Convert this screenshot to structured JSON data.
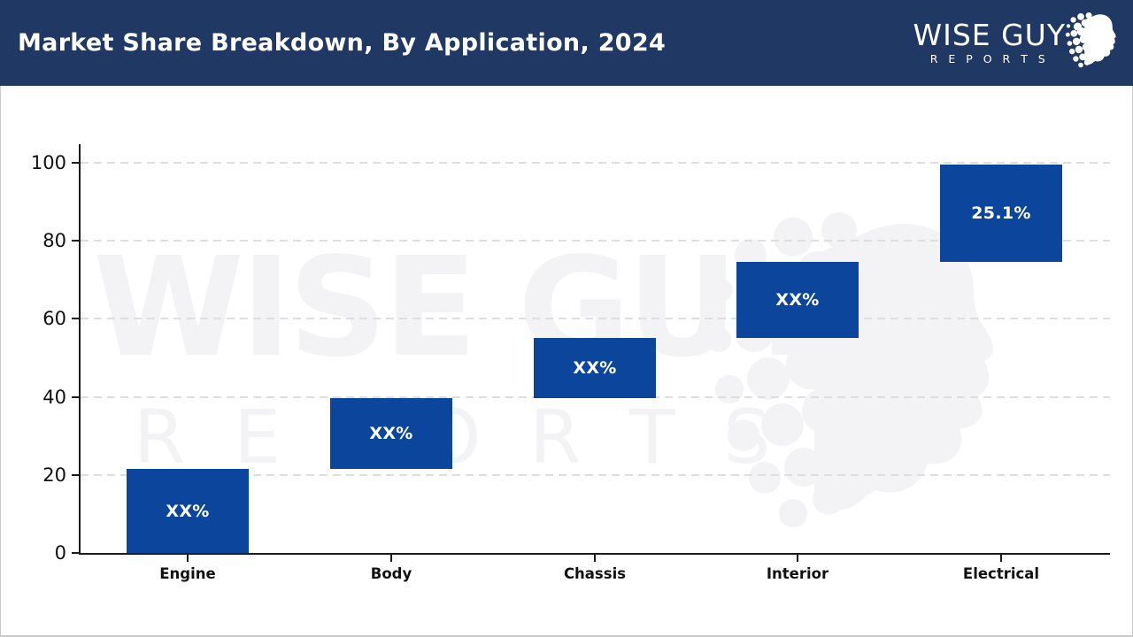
{
  "header": {
    "title": "Market Share Breakdown, By Application, 2024",
    "logo": {
      "line1": "WISE GUY",
      "line2": "R E P O R T S",
      "icon": "head-profile-dots-icon"
    }
  },
  "watermark": {
    "line1": "WISE GUY",
    "line2": "R E P O R T S",
    "icon": "head-profile-dots-icon"
  },
  "colors": {
    "header_bg": "#1F3864",
    "bar": "#0B459C",
    "watermark": "#F3F3F5",
    "grid": "#DEDEDE",
    "axis": "#1A1A1A",
    "bar_label": "#FFFFFF"
  },
  "chart_data": {
    "type": "bar",
    "subtype": "waterfall-floating-bars",
    "title": "Market Share Breakdown, By Application, 2024",
    "categories": [
      "Engine",
      "Body",
      "Chassis",
      "Interior",
      "Electrical"
    ],
    "segments": [
      {
        "category": "Engine",
        "start": 0,
        "end": 21.5,
        "value_label": "XX%"
      },
      {
        "category": "Body",
        "start": 21.5,
        "end": 39.7,
        "value_label": "XX%"
      },
      {
        "category": "Chassis",
        "start": 39.7,
        "end": 55.2,
        "value_label": "XX%"
      },
      {
        "category": "Interior",
        "start": 55.2,
        "end": 74.5,
        "value_label": "XX%"
      },
      {
        "category": "Electrical",
        "start": 74.5,
        "end": 99.6,
        "value_label": "25.1%"
      }
    ],
    "known_values": {
      "Electrical": 25.1
    },
    "xlabel": "",
    "ylabel": "",
    "ylim": [
      0,
      100
    ],
    "yticks": [
      0,
      20,
      40,
      60,
      80,
      100
    ],
    "grid": "horizontal-dashed",
    "legend": "none"
  }
}
